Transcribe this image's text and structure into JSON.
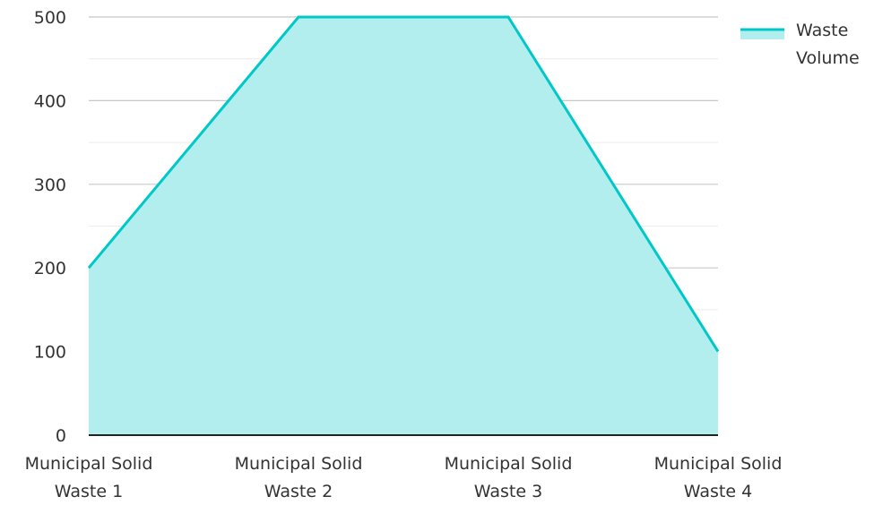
{
  "chart_data": {
    "type": "area",
    "categories": [
      "Municipal Solid Waste 1",
      "Municipal Solid Waste 2",
      "Municipal Solid Waste 3",
      "Municipal Solid Waste 4"
    ],
    "category_lines": [
      [
        "Municipal Solid",
        "Waste 1"
      ],
      [
        "Municipal Solid",
        "Waste 2"
      ],
      [
        "Municipal Solid",
        "Waste 3"
      ],
      [
        "Municipal Solid",
        "Waste 4"
      ]
    ],
    "series": [
      {
        "name": "Waste Volume",
        "values": [
          200,
          500,
          500,
          100
        ],
        "color": "#00c8c8",
        "fill_color": "#b2eeee"
      }
    ],
    "legend": {
      "position": "top-right",
      "lines": [
        "Waste",
        "Volume"
      ]
    },
    "ylim": [
      0,
      500
    ],
    "yticks": [
      0,
      100,
      200,
      300,
      400,
      500
    ],
    "grid": true,
    "xlabel": "",
    "ylabel": "",
    "title": ""
  }
}
